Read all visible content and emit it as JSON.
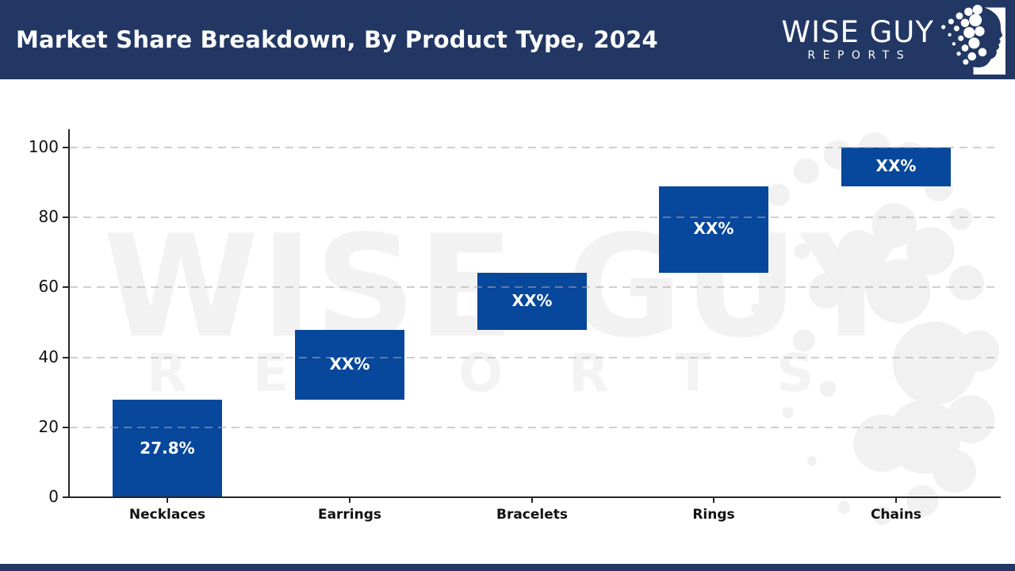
{
  "header": {
    "title": "Market Share Breakdown, By Product Type, 2024",
    "logo": {
      "name": "WISE GUY",
      "sub": "REPORTS"
    }
  },
  "watermark": {
    "name": "WISE GUY",
    "sub": "R E P O R T S"
  },
  "chart_data": {
    "type": "bar",
    "subtype": "waterfall",
    "title": "Market Share Breakdown, By Product Type, 2024",
    "categories": [
      "Necklaces",
      "Earrings",
      "Bracelets",
      "Rings",
      "Chains"
    ],
    "segments": [
      {
        "category": "Necklaces",
        "start": 0,
        "end": 27.8,
        "label": "27.8%"
      },
      {
        "category": "Earrings",
        "start": 27.8,
        "end": 47.8,
        "label": "XX%"
      },
      {
        "category": "Bracelets",
        "start": 47.8,
        "end": 64.2,
        "label": "XX%"
      },
      {
        "category": "Rings",
        "start": 64.2,
        "end": 88.9,
        "label": "XX%"
      },
      {
        "category": "Chains",
        "start": 88.9,
        "end": 100,
        "label": "XX%"
      }
    ],
    "y_ticks": [
      0,
      20,
      40,
      60,
      80,
      100
    ],
    "ylim": [
      0,
      105
    ],
    "xlabel": "",
    "ylabel": "",
    "grid": "horizontal-dashed",
    "legend_position": "none",
    "colors": {
      "bar": "#07479c",
      "bar_label": "#ffffff",
      "grid": "#cccccc",
      "axis": "#262626",
      "header_bg": "#223764",
      "footer_bg": "#223764",
      "title_text": "#ffffff",
      "watermark": "#f2f2f2"
    }
  }
}
